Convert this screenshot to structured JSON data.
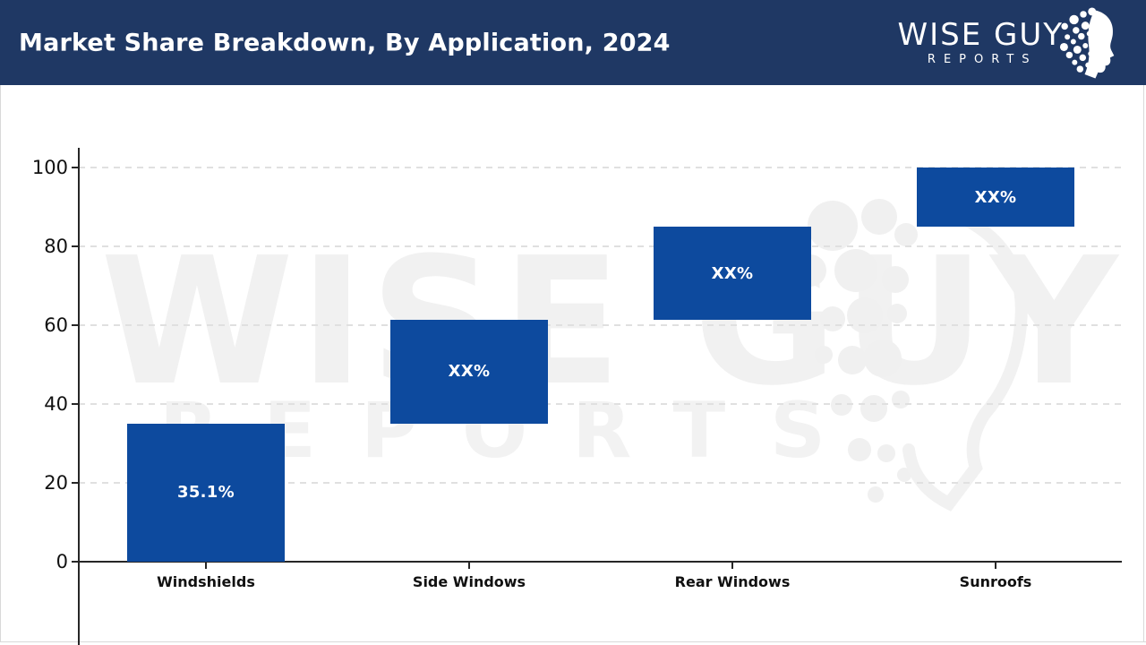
{
  "header": {
    "title": "Market Share Breakdown, By Application, 2024",
    "logo": {
      "primary": "WISE GUY",
      "secondary": "REPORTS"
    }
  },
  "watermark": {
    "primary": "WISE GUY",
    "secondary": "REPORTS"
  },
  "chart_data": {
    "type": "bar",
    "subtype": "waterfall",
    "title": "Market Share Breakdown, By Application, 2024",
    "categories": [
      "Windshields",
      "Side Windows",
      "Rear Windows",
      "Sunroofs"
    ],
    "segments": [
      {
        "category": "Windshields",
        "start": 0,
        "end": 35.1,
        "value_label": "35.1%"
      },
      {
        "category": "Side Windows",
        "start": 35.1,
        "end": 61.4,
        "value_label": "XX%"
      },
      {
        "category": "Rear Windows",
        "start": 61.4,
        "end": 84.9,
        "value_label": "XX%"
      },
      {
        "category": "Sunroofs",
        "start": 84.9,
        "end": 100,
        "value_label": "XX%"
      }
    ],
    "yticks": [
      0,
      20,
      40,
      60,
      80,
      100
    ],
    "ylim": [
      0,
      105
    ],
    "grid": "horizontal-dashed",
    "legend": "none",
    "colors": {
      "bar": "#0d4a9e",
      "header_band": "#1f3864",
      "gridline": "#e0e0e0",
      "axis": "#262626",
      "watermark": "#f1f1f1"
    }
  }
}
